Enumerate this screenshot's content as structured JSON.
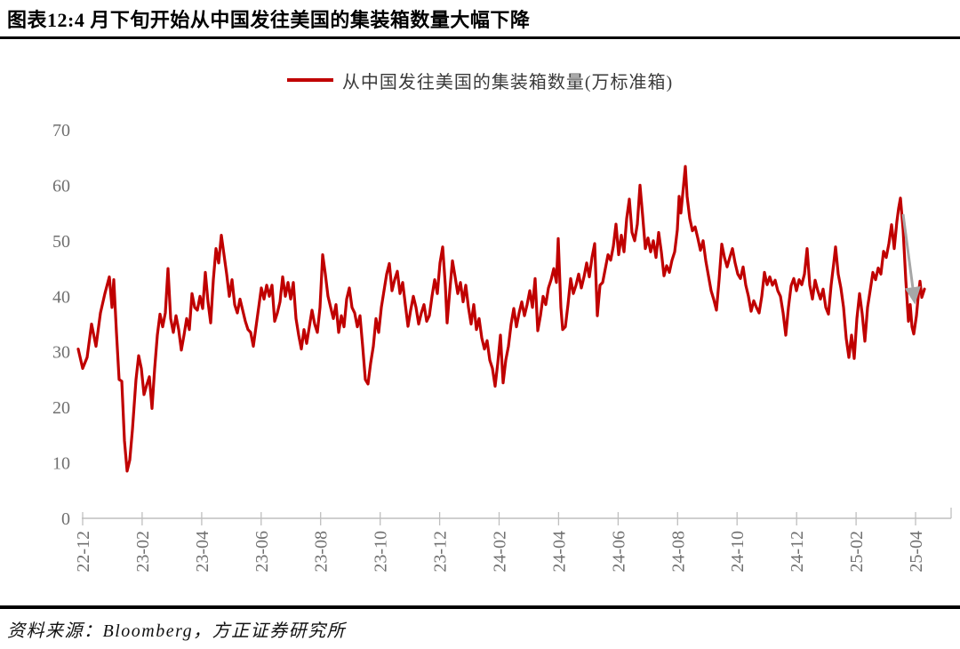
{
  "figure": {
    "title": "图表12:4 月下旬开始从中国发往美国的集装箱数量大幅下降",
    "source": "资料来源：Bloomberg，方正证券研究所"
  },
  "chart_data": {
    "type": "line",
    "title": "图表12:4 月下旬开始从中国发往美国的集装箱数量大幅下降",
    "legend": {
      "position": "top",
      "label": "从中国发往美国的集装箱数量(万标准箱)"
    },
    "unit": "万标准箱",
    "x_tick_labels": [
      "22-12",
      "23-02",
      "23-04",
      "23-06",
      "23-08",
      "23-10",
      "23-12",
      "24-02",
      "24-04",
      "24-06",
      "24-08",
      "24-10",
      "24-12",
      "25-02",
      "25-04"
    ],
    "y_ticks": [
      0,
      10,
      20,
      30,
      40,
      50,
      60,
      70
    ],
    "ylim": [
      0,
      70
    ],
    "grid": "off",
    "x_axis_note": "daily series; point x = position on time axis from 22-12 (0) to late 25-04 (952)",
    "colors": {
      "line": "#c00000",
      "axis": "#bfbfbf",
      "tick_label": "#6f6f6f",
      "arrow": "#a6a6a6"
    },
    "series": [
      {
        "name": "从中国发往美国的集装箱数量(万标准箱)",
        "color": "#c00000",
        "points": [
          [
            0,
            30.5
          ],
          [
            5,
            27
          ],
          [
            10,
            29
          ],
          [
            15,
            35
          ],
          [
            20,
            31
          ],
          [
            25,
            37
          ],
          [
            30,
            40.5
          ],
          [
            35,
            43.5
          ],
          [
            38,
            38
          ],
          [
            40,
            43
          ],
          [
            43,
            33.5
          ],
          [
            46,
            25
          ],
          [
            49,
            24.7
          ],
          [
            52,
            14
          ],
          [
            55,
            8.5
          ],
          [
            58,
            10.5
          ],
          [
            61,
            16
          ],
          [
            65,
            25
          ],
          [
            68,
            29.3
          ],
          [
            71,
            27
          ],
          [
            74,
            22.3
          ],
          [
            77,
            24
          ],
          [
            80,
            25.5
          ],
          [
            83,
            19.8
          ],
          [
            86,
            27
          ],
          [
            89,
            33
          ],
          [
            92,
            36.8
          ],
          [
            95,
            34.5
          ],
          [
            98,
            37
          ],
          [
            101,
            45
          ],
          [
            104,
            36
          ],
          [
            107,
            33.5
          ],
          [
            110,
            36.5
          ],
          [
            113,
            34
          ],
          [
            116,
            30.3
          ],
          [
            119,
            33
          ],
          [
            122,
            36
          ],
          [
            125,
            34
          ],
          [
            128,
            40.5
          ],
          [
            131,
            38
          ],
          [
            134,
            37.5
          ],
          [
            137,
            40
          ],
          [
            140,
            37.8
          ],
          [
            143,
            44.3
          ],
          [
            146,
            39
          ],
          [
            149,
            35.2
          ],
          [
            152,
            43
          ],
          [
            155,
            48.6
          ],
          [
            158,
            46
          ],
          [
            161,
            51
          ],
          [
            164,
            47.5
          ],
          [
            167,
            44
          ],
          [
            170,
            40
          ],
          [
            173,
            43
          ],
          [
            176,
            38.5
          ],
          [
            179,
            37
          ],
          [
            182,
            39.5
          ],
          [
            185,
            37.5
          ],
          [
            188,
            35.5
          ],
          [
            191,
            34
          ],
          [
            194,
            33.5
          ],
          [
            197,
            31
          ],
          [
            200,
            34.5
          ],
          [
            203,
            38
          ],
          [
            206,
            41.5
          ],
          [
            209,
            39.5
          ],
          [
            212,
            42
          ],
          [
            215,
            40
          ],
          [
            218,
            42
          ],
          [
            221,
            35.5
          ],
          [
            224,
            37
          ],
          [
            227,
            39
          ],
          [
            230,
            43.5
          ],
          [
            233,
            40
          ],
          [
            236,
            42.5
          ],
          [
            239,
            39.5
          ],
          [
            242,
            42.5
          ],
          [
            245,
            36
          ],
          [
            248,
            33
          ],
          [
            251,
            30.5
          ],
          [
            254,
            34
          ],
          [
            257,
            31.5
          ],
          [
            260,
            34.5
          ],
          [
            263,
            37.5
          ],
          [
            266,
            35
          ],
          [
            269,
            33.5
          ],
          [
            272,
            38
          ],
          [
            275,
            47.5
          ],
          [
            278,
            44
          ],
          [
            281,
            40
          ],
          [
            284,
            38
          ],
          [
            287,
            36
          ],
          [
            290,
            38.5
          ],
          [
            293,
            33.5
          ],
          [
            296,
            36.5
          ],
          [
            299,
            34.5
          ],
          [
            302,
            39.5
          ],
          [
            305,
            41.5
          ],
          [
            308,
            38
          ],
          [
            311,
            37
          ],
          [
            314,
            34.5
          ],
          [
            317,
            36.5
          ],
          [
            320,
            31
          ],
          [
            323,
            25
          ],
          [
            326,
            24.2
          ],
          [
            329,
            28
          ],
          [
            332,
            31
          ],
          [
            335,
            36
          ],
          [
            338,
            33.5
          ],
          [
            341,
            38
          ],
          [
            344,
            41
          ],
          [
            347,
            44
          ],
          [
            350,
            45.9
          ],
          [
            353,
            41
          ],
          [
            356,
            43
          ],
          [
            359,
            44.5
          ],
          [
            362,
            40.5
          ],
          [
            365,
            42.5
          ],
          [
            368,
            38.5
          ],
          [
            371,
            34.6
          ],
          [
            374,
            37.5
          ],
          [
            377,
            40
          ],
          [
            380,
            38
          ],
          [
            383,
            35
          ],
          [
            386,
            37
          ],
          [
            389,
            38.5
          ],
          [
            392,
            35.5
          ],
          [
            395,
            36.5
          ],
          [
            398,
            40
          ],
          [
            401,
            43
          ],
          [
            404,
            40.5
          ],
          [
            407,
            46
          ],
          [
            410,
            48.9
          ],
          [
            413,
            42
          ],
          [
            415,
            35.2
          ],
          [
            418,
            41
          ],
          [
            421,
            46.4
          ],
          [
            424,
            43.5
          ],
          [
            427,
            40.5
          ],
          [
            430,
            42.5
          ],
          [
            433,
            39
          ],
          [
            436,
            42
          ],
          [
            439,
            38
          ],
          [
            442,
            35
          ],
          [
            445,
            38.5
          ],
          [
            448,
            34
          ],
          [
            451,
            36
          ],
          [
            454,
            32.5
          ],
          [
            457,
            30.5
          ],
          [
            460,
            32
          ],
          [
            463,
            28.5
          ],
          [
            466,
            27
          ],
          [
            469,
            23.8
          ],
          [
            472,
            28
          ],
          [
            475,
            33
          ],
          [
            478,
            24.4
          ],
          [
            481,
            28.5
          ],
          [
            484,
            31
          ],
          [
            487,
            35
          ],
          [
            490,
            37.8
          ],
          [
            493,
            34.5
          ],
          [
            496,
            37
          ],
          [
            499,
            39
          ],
          [
            502,
            36.5
          ],
          [
            505,
            38.5
          ],
          [
            508,
            41
          ],
          [
            511,
            38
          ],
          [
            514,
            43.2
          ],
          [
            517,
            33.8
          ],
          [
            520,
            36.5
          ],
          [
            523,
            40
          ],
          [
            526,
            38.5
          ],
          [
            529,
            41.5
          ],
          [
            532,
            43
          ],
          [
            535,
            45
          ],
          [
            538,
            42.5
          ],
          [
            540,
            50.4
          ],
          [
            543,
            38
          ],
          [
            545,
            34
          ],
          [
            548,
            34.5
          ],
          [
            551,
            38.5
          ],
          [
            554,
            43.2
          ],
          [
            557,
            40.5
          ],
          [
            560,
            42
          ],
          [
            563,
            44
          ],
          [
            566,
            41.5
          ],
          [
            569,
            43.5
          ],
          [
            572,
            46
          ],
          [
            575,
            43.5
          ],
          [
            578,
            47
          ],
          [
            581,
            49.5
          ],
          [
            584,
            36.5
          ],
          [
            587,
            42
          ],
          [
            590,
            42.5
          ],
          [
            593,
            45
          ],
          [
            596,
            47.5
          ],
          [
            599,
            46.5
          ],
          [
            602,
            49
          ],
          [
            605,
            53
          ],
          [
            608,
            47.5
          ],
          [
            611,
            51
          ],
          [
            614,
            48
          ],
          [
            617,
            54
          ],
          [
            620,
            57.5
          ],
          [
            623,
            51.5
          ],
          [
            626,
            50
          ],
          [
            629,
            53
          ],
          [
            632,
            60
          ],
          [
            635,
            54.5
          ],
          [
            638,
            48.6
          ],
          [
            641,
            50.5
          ],
          [
            644,
            48
          ],
          [
            647,
            50
          ],
          [
            650,
            47
          ],
          [
            653,
            51.5
          ],
          [
            656,
            48
          ],
          [
            659,
            43.7
          ],
          [
            662,
            45.5
          ],
          [
            665,
            44.3
          ],
          [
            668,
            46.5
          ],
          [
            671,
            48
          ],
          [
            674,
            52
          ],
          [
            676,
            58
          ],
          [
            678,
            55
          ],
          [
            681,
            60
          ],
          [
            683,
            63.4
          ],
          [
            685,
            58
          ],
          [
            688,
            54
          ],
          [
            691,
            51.8
          ],
          [
            694,
            52.5
          ],
          [
            697,
            50.5
          ],
          [
            700,
            48.3
          ],
          [
            703,
            50
          ],
          [
            706,
            46.4
          ],
          [
            709,
            43.7
          ],
          [
            712,
            41
          ],
          [
            715,
            39.4
          ],
          [
            718,
            37.5
          ],
          [
            721,
            43
          ],
          [
            724,
            49.4
          ],
          [
            727,
            47
          ],
          [
            730,
            45.3
          ],
          [
            733,
            47
          ],
          [
            736,
            48.6
          ],
          [
            739,
            46
          ],
          [
            742,
            44
          ],
          [
            745,
            43.2
          ],
          [
            748,
            45.3
          ],
          [
            751,
            42
          ],
          [
            754,
            40
          ],
          [
            757,
            37.3
          ],
          [
            760,
            39.2
          ],
          [
            763,
            38
          ],
          [
            766,
            37
          ],
          [
            769,
            40
          ],
          [
            772,
            44.3
          ],
          [
            775,
            42.1
          ],
          [
            778,
            43.5
          ],
          [
            781,
            42
          ],
          [
            784,
            42.9
          ],
          [
            787,
            41
          ],
          [
            790,
            40
          ],
          [
            793,
            37
          ],
          [
            796,
            33
          ],
          [
            799,
            38
          ],
          [
            802,
            41.9
          ],
          [
            805,
            43.2
          ],
          [
            808,
            41
          ],
          [
            811,
            43
          ],
          [
            814,
            42.1
          ],
          [
            817,
            44
          ],
          [
            820,
            48.6
          ],
          [
            823,
            42
          ],
          [
            826,
            39.5
          ],
          [
            829,
            42.9
          ],
          [
            832,
            41
          ],
          [
            835,
            39.5
          ],
          [
            838,
            41.3
          ],
          [
            841,
            38
          ],
          [
            844,
            36.8
          ],
          [
            847,
            42
          ],
          [
            850,
            46
          ],
          [
            852,
            48.9
          ],
          [
            855,
            44
          ],
          [
            858,
            41.5
          ],
          [
            861,
            38
          ],
          [
            864,
            32.4
          ],
          [
            867,
            29
          ],
          [
            870,
            33
          ],
          [
            873,
            28.8
          ],
          [
            876,
            36
          ],
          [
            879,
            40.5
          ],
          [
            882,
            36.8
          ],
          [
            885,
            31.9
          ],
          [
            888,
            38
          ],
          [
            891,
            41.1
          ],
          [
            894,
            44.3
          ],
          [
            897,
            43
          ],
          [
            900,
            45.1
          ],
          [
            903,
            44
          ],
          [
            906,
            48.1
          ],
          [
            909,
            47
          ],
          [
            912,
            49.5
          ],
          [
            915,
            52.9
          ],
          [
            918,
            48.6
          ],
          [
            921,
            53.5
          ],
          [
            923,
            55.9
          ],
          [
            925,
            57.7
          ],
          [
            928,
            52
          ],
          [
            931,
            43
          ],
          [
            934,
            35.5
          ],
          [
            936,
            38.5
          ],
          [
            938,
            34.5
          ],
          [
            940,
            33.2
          ],
          [
            943,
            36.5
          ],
          [
            945,
            40
          ],
          [
            947,
            42.7
          ],
          [
            949,
            39.8
          ],
          [
            952,
            41.3
          ]
        ]
      }
    ],
    "annotation_arrow": {
      "description": "gray arrow marking the sharp drop starting late April 2025",
      "color": "#a6a6a6",
      "from": [
        928,
        54.8
      ],
      "to": [
        941,
        39
      ]
    }
  }
}
